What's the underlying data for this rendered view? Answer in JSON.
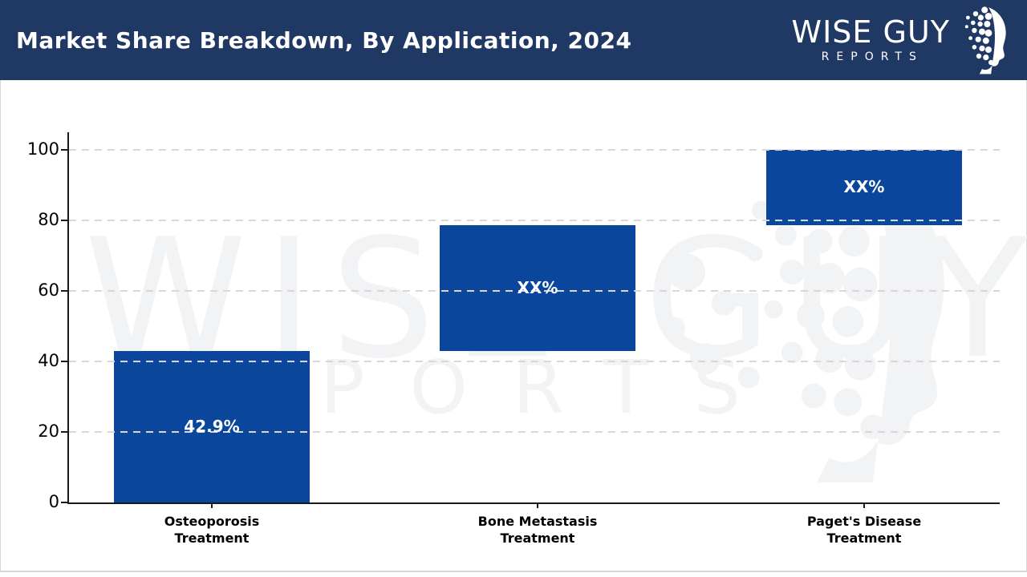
{
  "header": {
    "title": "Market Share Breakdown, By Application, 2024",
    "brand": {
      "name": "WISE GUY",
      "tagline": "REPORTS"
    }
  },
  "watermark": {
    "line1": "WISE GUY",
    "line2": "REPORTS"
  },
  "colors": {
    "header_bg": "#1f3864",
    "bar": "#0a469b",
    "bar_label": "#ffffff",
    "grid": "#d8d8d8",
    "axis": "#1a1a1a",
    "watermark": "#f2f3f5"
  },
  "chart_data": {
    "type": "bar",
    "variant": "stepped-stacked-percentage",
    "title": "Market Share Breakdown, By Application, 2024",
    "categories": [
      [
        "Osteoporosis",
        "Treatment"
      ],
      [
        "Bone Metastasis",
        "Treatment"
      ],
      [
        "Paget's Disease",
        "Treatment"
      ]
    ],
    "segments": [
      {
        "category": "Osteoporosis Treatment",
        "start": 0,
        "end": 42.9,
        "label": "42.9%"
      },
      {
        "category": "Bone Metastasis Treatment",
        "start": 42.9,
        "end": 78.6,
        "label": "XX%"
      },
      {
        "category": "Paget's Disease Treatment",
        "start": 78.6,
        "end": 100,
        "label": "XX%"
      }
    ],
    "yticks": [
      0,
      20,
      40,
      60,
      80,
      100
    ],
    "ylim": [
      0,
      100
    ],
    "grid": "dashed-horizontal",
    "legend": "none",
    "bar_color": "#0a469b"
  }
}
